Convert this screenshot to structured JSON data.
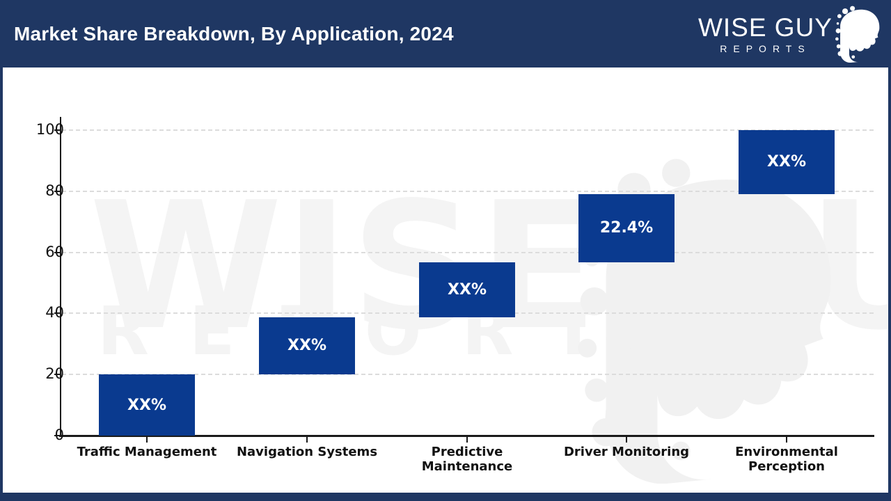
{
  "header": {
    "title": "Market Share Breakdown, By Application, 2024",
    "logo_line1": "WISE GUY",
    "logo_line2": "REPORTS"
  },
  "watermark": {
    "line1": "WISE GUY",
    "line2": "REPORTS"
  },
  "colors": {
    "header_bg": "#1f3763",
    "bar": "#0a3a8f",
    "grid": "#dcdcdc",
    "axis": "#1a1a1a",
    "bar_label": "#ffffff",
    "watermark": "#f4f4f4"
  },
  "chart_data": {
    "type": "bar",
    "subtype": "waterfall",
    "title": "Market Share Breakdown, By Application, 2024",
    "categories": [
      "Traffic Management",
      "Navigation Systems",
      "Predictive Maintenance",
      "Driver Monitoring",
      "Environmental Perception"
    ],
    "segments": [
      {
        "category": "Traffic Management",
        "start": 0,
        "end": 20,
        "label": "XX%"
      },
      {
        "category": "Navigation Systems",
        "start": 20,
        "end": 38.8,
        "label": "XX%"
      },
      {
        "category": "Predictive Maintenance",
        "start": 38.8,
        "end": 56.7,
        "label": "XX%"
      },
      {
        "category": "Driver Monitoring",
        "start": 56.7,
        "end": 79.1,
        "label": "22.4%"
      },
      {
        "category": "Environmental Perception",
        "start": 79.1,
        "end": 100,
        "label": "XX%"
      }
    ],
    "y_ticks": [
      0,
      20,
      40,
      60,
      80,
      100
    ],
    "ylim": [
      0,
      105
    ],
    "xlabel": "",
    "ylabel": "",
    "grid": "horizontal-dashed",
    "legend": "none",
    "bar_color": "#0a3a8f"
  }
}
